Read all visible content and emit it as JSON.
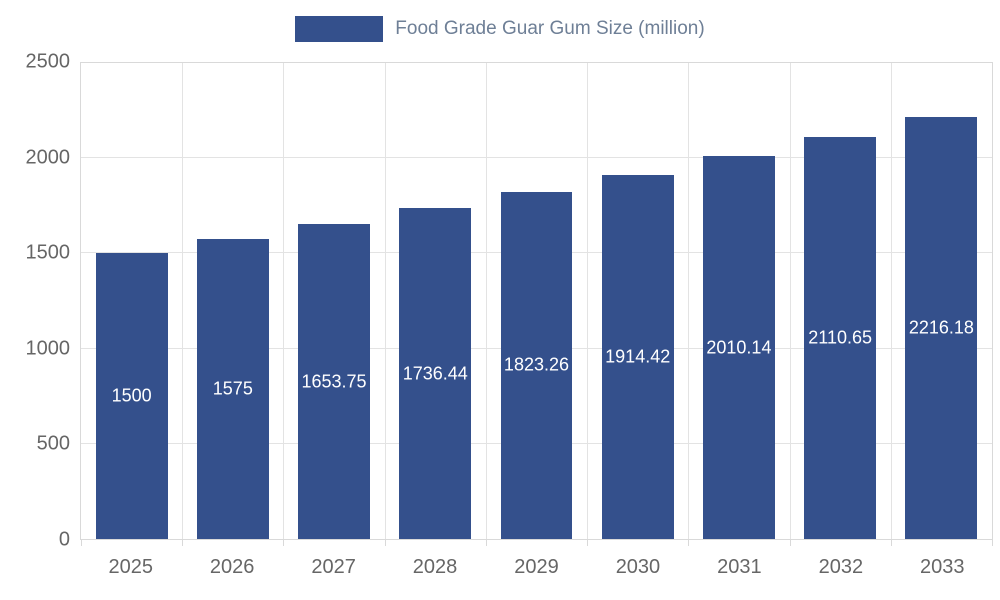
{
  "legend": {
    "label": "Food Grade Guar Gum Size (million)"
  },
  "chart_data": {
    "type": "bar",
    "title": "Food Grade Guar Gum Size (million)",
    "series_name": "Food Grade Guar Gum Size (million)",
    "categories": [
      "2025",
      "2026",
      "2027",
      "2028",
      "2029",
      "2030",
      "2031",
      "2032",
      "2033"
    ],
    "values": [
      1500,
      1575,
      1653.75,
      1736.44,
      1823.26,
      1914.42,
      2010.14,
      2110.65,
      2216.18
    ],
    "value_labels": [
      "1500",
      "1575",
      "1653.75",
      "1736.44",
      "1823.26",
      "1914.42",
      "2010.14",
      "2110.65",
      "2216.18"
    ],
    "xlabel": "",
    "ylabel": "",
    "ylim": [
      0,
      2500
    ],
    "y_ticks": [
      0,
      500,
      1000,
      1500,
      2000,
      2500
    ],
    "grid": true,
    "legend_position": "top-center",
    "value_label_position": "center-of-bar"
  },
  "colors": {
    "bar": "#34508c",
    "bar_label_text": "#ffffff",
    "axis_text": "#666666",
    "legend_text": "#6e7f96",
    "gridline": "#e3e3e3",
    "plot_border": "#d9d9d9",
    "background": "#ffffff"
  }
}
